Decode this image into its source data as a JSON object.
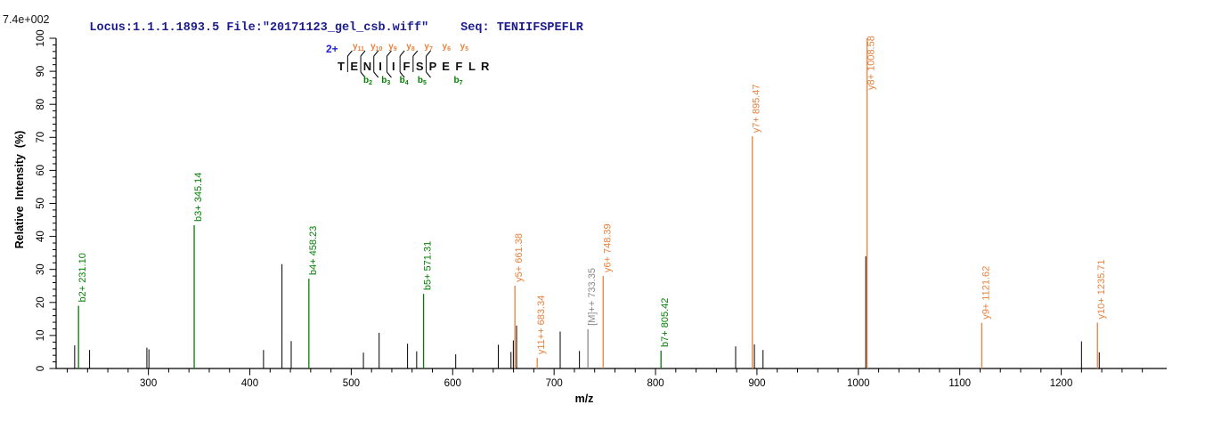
{
  "header": {
    "locus_file": "Locus:1.1.1.1893.5 File:\"20171123_gel_csb.wiff\"",
    "seq_label": "Seq:",
    "seq_value": "TENIIFSPEFLR"
  },
  "base_peak_intensity": "7.4e+002",
  "colors": {
    "header_navy": "#1b1b8e",
    "y_ion_orange": "#e8813c",
    "b_ion_green": "#038003",
    "precursor_gray": "#888888",
    "peak_black": "#000000",
    "charge_blue": "#2222cc",
    "axis_black": "#000000"
  },
  "peptide_annotation": {
    "charge": "2+",
    "residues": [
      "T",
      "E",
      "N",
      "I",
      "I",
      "F",
      "S",
      "P",
      "E",
      "F",
      "L",
      "R"
    ],
    "y_ions": [
      {
        "label": "y",
        "sub": "11",
        "site": 1
      },
      {
        "label": "y",
        "sub": "10",
        "site": 2
      },
      {
        "label": "y",
        "sub": "9",
        "site": 3
      },
      {
        "label": "y",
        "sub": "8",
        "site": 4
      },
      {
        "label": "y",
        "sub": "7",
        "site": 5
      },
      {
        "label": "y",
        "sub": "6",
        "site": 6
      },
      {
        "label": "y",
        "sub": "5",
        "site": 7
      }
    ],
    "b_ions": [
      {
        "label": "b",
        "sub": "2",
        "site": 2
      },
      {
        "label": "b",
        "sub": "3",
        "site": 3
      },
      {
        "label": "b",
        "sub": "4",
        "site": 4
      },
      {
        "label": "b",
        "sub": "5",
        "site": 5
      },
      {
        "label": "b",
        "sub": "7",
        "site": 7
      }
    ]
  },
  "chart_data": {
    "type": "bar",
    "subtype": "MS/MS centroid mass spectrum (stick plot)",
    "title": "",
    "xlabel": "m/z",
    "ylabel": "Relative  Intensity  (%)",
    "xlim": [
      209,
      1304
    ],
    "ylim": [
      0,
      100
    ],
    "x_major_ticks": [
      300,
      400,
      500,
      600,
      700,
      800,
      900,
      1000,
      1100,
      1200
    ],
    "x_minor_step": 20,
    "x_minor_range": [
      220,
      1280
    ],
    "y_major_step": 10,
    "y_minor_step": 2,
    "grid": false,
    "legend": false,
    "peaks": [
      {
        "mz": 227.3,
        "pct": 7.0,
        "series": "unassigned",
        "label": ""
      },
      {
        "mz": 231.1,
        "pct": 19.0,
        "series": "b",
        "label": "b2+ 231.10"
      },
      {
        "mz": 242.0,
        "pct": 5.6,
        "series": "unassigned",
        "label": ""
      },
      {
        "mz": 298.5,
        "pct": 6.3,
        "series": "unassigned",
        "label": ""
      },
      {
        "mz": 300.5,
        "pct": 5.8,
        "series": "unassigned",
        "label": ""
      },
      {
        "mz": 345.14,
        "pct": 43.4,
        "series": "b",
        "label": "b3+ 345.14"
      },
      {
        "mz": 413.5,
        "pct": 5.6,
        "series": "unassigned",
        "label": ""
      },
      {
        "mz": 431.7,
        "pct": 31.6,
        "series": "unassigned",
        "label": ""
      },
      {
        "mz": 440.8,
        "pct": 8.3,
        "series": "unassigned",
        "label": ""
      },
      {
        "mz": 458.23,
        "pct": 27.2,
        "series": "b",
        "label": "b4+ 458.23"
      },
      {
        "mz": 512.0,
        "pct": 4.8,
        "series": "unassigned",
        "label": ""
      },
      {
        "mz": 527.5,
        "pct": 10.8,
        "series": "unassigned",
        "label": ""
      },
      {
        "mz": 555.5,
        "pct": 7.5,
        "series": "unassigned",
        "label": ""
      },
      {
        "mz": 564.5,
        "pct": 5.2,
        "series": "unassigned",
        "label": ""
      },
      {
        "mz": 571.31,
        "pct": 22.6,
        "series": "b",
        "label": "b5+ 571.31"
      },
      {
        "mz": 603.0,
        "pct": 4.3,
        "series": "unassigned",
        "label": ""
      },
      {
        "mz": 645.0,
        "pct": 7.2,
        "series": "unassigned",
        "label": ""
      },
      {
        "mz": 657.5,
        "pct": 5.0,
        "series": "unassigned",
        "label": ""
      },
      {
        "mz": 659.8,
        "pct": 8.5,
        "series": "unassigned",
        "label": ""
      },
      {
        "mz": 661.38,
        "pct": 25.1,
        "series": "y",
        "label": "y5+ 661.38"
      },
      {
        "mz": 663.0,
        "pct": 13.0,
        "series": "unassigned",
        "label": ""
      },
      {
        "mz": 683.34,
        "pct": 3.2,
        "series": "y",
        "label": "y11++ 683.34"
      },
      {
        "mz": 706.0,
        "pct": 11.2,
        "series": "unassigned",
        "label": ""
      },
      {
        "mz": 725.0,
        "pct": 5.3,
        "series": "unassigned",
        "label": ""
      },
      {
        "mz": 733.35,
        "pct": 11.9,
        "series": "M",
        "label": "[M]++ 733.35"
      },
      {
        "mz": 748.39,
        "pct": 28.0,
        "series": "y",
        "label": "y6+ 748.39"
      },
      {
        "mz": 805.42,
        "pct": 5.4,
        "series": "b",
        "label": "b7+ 805.42"
      },
      {
        "mz": 879.0,
        "pct": 6.7,
        "series": "unassigned",
        "label": ""
      },
      {
        "mz": 895.47,
        "pct": 70.3,
        "series": "y",
        "label": "y7+ 895.47"
      },
      {
        "mz": 897.5,
        "pct": 7.3,
        "series": "unassigned",
        "label": ""
      },
      {
        "mz": 906.0,
        "pct": 5.6,
        "series": "unassigned",
        "label": ""
      },
      {
        "mz": 1007.3,
        "pct": 34.0,
        "series": "unassigned",
        "label": ""
      },
      {
        "mz": 1008.58,
        "pct": 100.0,
        "series": "y",
        "label": "y8+ 1008.58"
      },
      {
        "mz": 1121.62,
        "pct": 13.8,
        "series": "y",
        "label": "y9+ 1121.62"
      },
      {
        "mz": 1220.0,
        "pct": 8.2,
        "series": "unassigned",
        "label": ""
      },
      {
        "mz": 1235.71,
        "pct": 13.9,
        "series": "y",
        "label": "y10+ 1235.71"
      },
      {
        "mz": 1237.5,
        "pct": 4.9,
        "series": "unassigned",
        "label": ""
      }
    ]
  }
}
